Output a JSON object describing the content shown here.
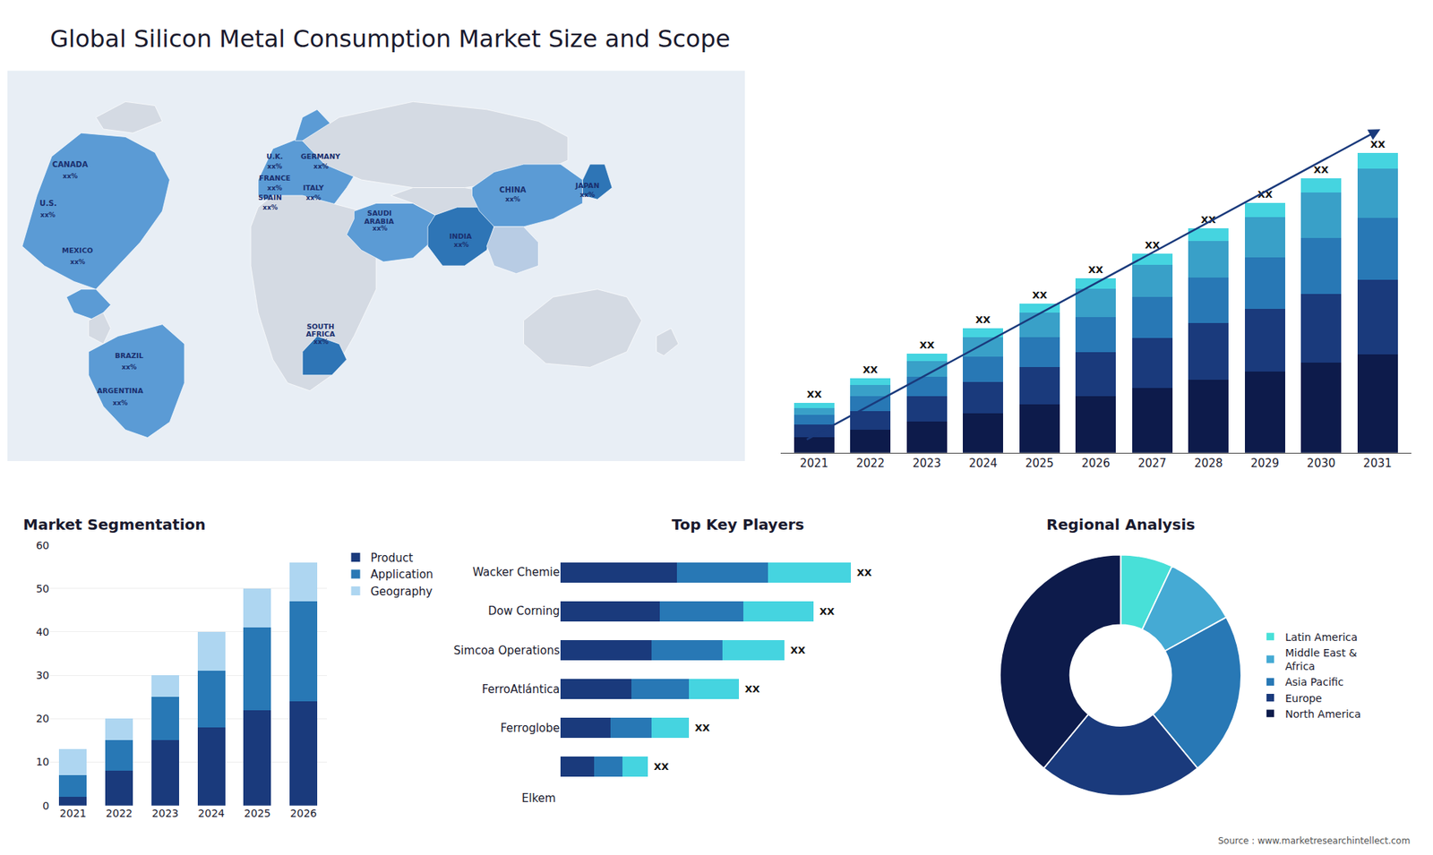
{
  "title": "Global Silicon Metal Consumption Market Size and Scope",
  "annotations": [
    "Source : www.marketresearchintellect.com"
  ],
  "chart_data": [
    {
      "type": "map",
      "colors": [
        "#e8eef5",
        "#d4dae3",
        "#b8cce4",
        "#5b9bd5",
        "#2e75b6"
      ],
      "tick_labels": false,
      "annotations": [
        "CANADA",
        "xx%",
        "U.S.",
        "xx%",
        "MEXICO",
        "xx%",
        "BRAZIL",
        "xx%",
        "ARGENTINA",
        "xx%",
        "U.K.",
        "xx%",
        "FRANCE",
        "xx%",
        "SPAIN",
        "xx%",
        "GERMANY",
        "xx%",
        "ITALY",
        "xx%",
        "SOUTH",
        "AFRICA",
        "xx%",
        "SAUDI",
        "ARABIA",
        "xx%",
        "INDIA",
        "xx%",
        "CHINA",
        "xx%",
        "JAPAN",
        "xx%"
      ]
    },
    {
      "type": "bar",
      "stacked": true,
      "categories": [
        "2021",
        "2022",
        "2023",
        "2024",
        "2025",
        "2026",
        "2027",
        "2028",
        "2029",
        "2030",
        "2031"
      ],
      "series": [
        {
          "color": "#0d1b4b",
          "values": [
            1.5,
            2.2,
            3.0,
            3.8,
            4.6,
            5.4,
            6.2,
            7.0,
            7.8,
            8.6,
            9.4
          ]
        },
        {
          "color": "#1a3a7c",
          "values": [
            1.2,
            1.8,
            2.4,
            3.0,
            3.6,
            4.2,
            4.8,
            5.4,
            6.0,
            6.6,
            7.2
          ]
        },
        {
          "color": "#2878b5",
          "values": [
            0.9,
            1.4,
            1.9,
            2.4,
            2.9,
            3.4,
            3.9,
            4.4,
            4.9,
            5.4,
            5.9
          ]
        },
        {
          "color": "#39a0c8",
          "values": [
            0.7,
            1.1,
            1.5,
            1.9,
            2.3,
            2.7,
            3.1,
            3.5,
            3.9,
            4.3,
            4.7
          ]
        },
        {
          "color": "#45d4e0",
          "values": [
            0.5,
            0.6,
            0.7,
            0.8,
            0.9,
            1.0,
            1.1,
            1.2,
            1.3,
            1.4,
            1.5
          ]
        }
      ],
      "annotations": [
        "XX",
        "XX",
        "XX",
        "XX",
        "XX",
        "XX",
        "XX",
        "XX",
        "XX",
        "XX",
        "XX"
      ],
      "ylim": [
        0,
        35.014
      ],
      "tick_labels": "x",
      "grid": false
    },
    {
      "type": "bar",
      "title": "Market Segmentation",
      "stacked": true,
      "categories": [
        "2021",
        "2022",
        "2023",
        "2024",
        "2025",
        "2026"
      ],
      "series": [
        {
          "name": "Product",
          "color": "#1a3a7c",
          "values": [
            2,
            8,
            15,
            18,
            22,
            24
          ]
        },
        {
          "name": "Application",
          "color": "#2878b5",
          "values": [
            5,
            7,
            10,
            13,
            19,
            23
          ]
        },
        {
          "name": "Geography",
          "color": "#aed6f1",
          "values": [
            6,
            5,
            5,
            9,
            9,
            9
          ]
        }
      ],
      "ylim": [
        0,
        60
      ],
      "yticks": [
        0,
        10,
        20,
        30,
        40,
        50,
        60
      ],
      "grid": true,
      "legend": "upper right"
    },
    {
      "type": "bar",
      "title": "Top Key Players",
      "stacked": true,
      "orientation": "horizontal",
      "categories": [
        "Wacker Chemie",
        "Dow Corning",
        "Simcoa Operations",
        "FerroAtlántica",
        "Ferroglobe",
        null
      ],
      "series": [
        {
          "color": "#1a3a7c",
          "values": [
            28,
            24,
            22,
            17,
            12,
            8
          ]
        },
        {
          "color": "#2878b5",
          "values": [
            22,
            20,
            17,
            14,
            10,
            7
          ]
        },
        {
          "color": "#45d4e0",
          "values": [
            20,
            17,
            15,
            12,
            9,
            6
          ]
        }
      ],
      "annotations": [
        "XX",
        "XX",
        "XX",
        "XX",
        "XX",
        "XX",
        "Elkem"
      ],
      "xlim": [
        0,
        85.4
      ],
      "tick_labels": "y",
      "grid": false
    },
    {
      "type": "pie",
      "title": "Regional Analysis",
      "categories": [
        "Latin America",
        "Middle East &\nAfrica",
        "Asia Pacific",
        "Europe",
        "North America"
      ],
      "values": [
        7,
        10,
        22,
        22,
        39
      ],
      "colors": [
        "#48e0d8",
        "#45aad4",
        "#2878b5",
        "#1a3a7c",
        "#0d1b4b"
      ],
      "legend": "right"
    }
  ]
}
